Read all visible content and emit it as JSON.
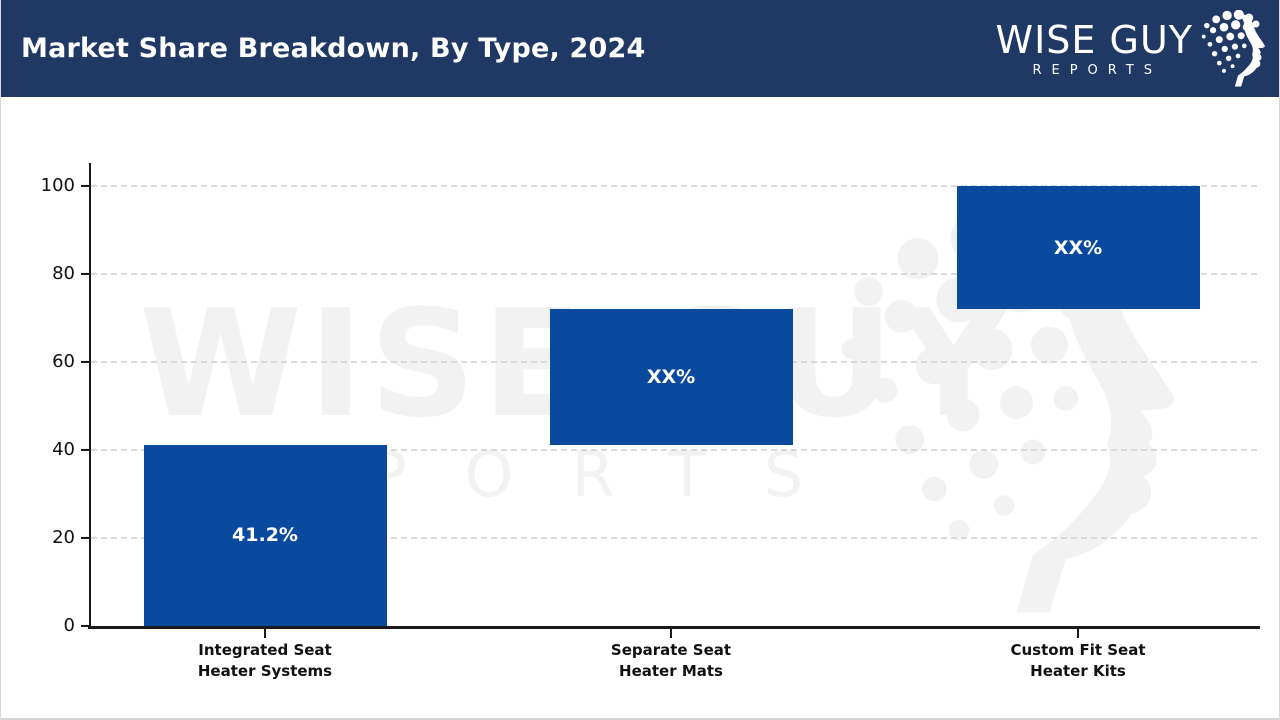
{
  "header": {
    "title": "Market Share Breakdown, By Type, 2024",
    "logo": {
      "line1": "WISE GUY",
      "line2": "REPORTS"
    }
  },
  "watermark": {
    "line1": "WISE GUY",
    "line2": "REPORTS"
  },
  "colors": {
    "header_bg": "#1f3864",
    "bar": "#0a4a9e",
    "bar_label": "#ffffff",
    "axis": "#1a1a1a",
    "gridline": "#d9d9d9",
    "watermark": "#f2f2f2"
  },
  "chart_data": {
    "type": "bar",
    "subtype": "waterfall-stacked-segments",
    "title": "Market Share Breakdown, By Type, 2024",
    "categories": [
      "Integrated Seat\nHeater Systems",
      "Separate Seat\nHeater Mats",
      "Custom Fit Seat\nHeater Kits"
    ],
    "bars": [
      {
        "category": "Integrated Seat Heater Systems",
        "start": 0,
        "end": 41.2,
        "label": "41.2%"
      },
      {
        "category": "Separate Seat Heater Mats",
        "start": 41.2,
        "end": 72,
        "label": "XX%"
      },
      {
        "category": "Custom Fit Seat Heater Kits",
        "start": 72,
        "end": 100,
        "label": "XX%"
      }
    ],
    "xlabel": "",
    "ylabel": "",
    "ylim": [
      0,
      100
    ],
    "yticks": [
      0,
      20,
      40,
      60,
      80,
      100
    ],
    "grid": "horizontal-dashed",
    "legend": "none"
  }
}
